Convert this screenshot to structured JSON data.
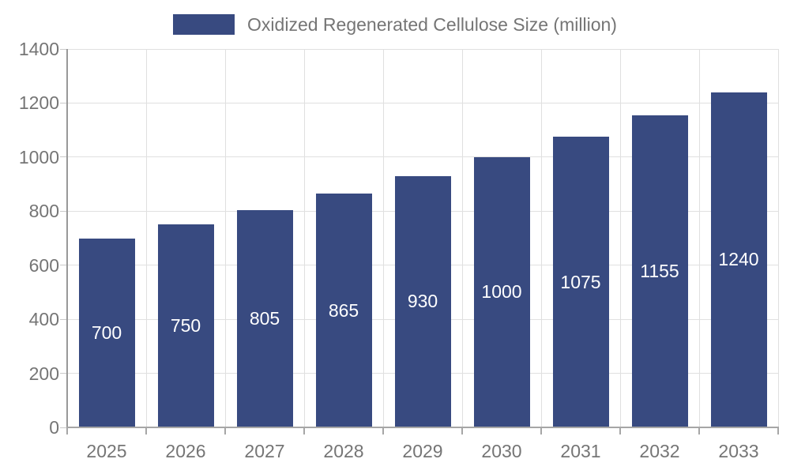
{
  "legend": {
    "label": "Oxidized Regenerated Cellulose Size (million)"
  },
  "chart_data": {
    "type": "bar",
    "title": "Oxidized Regenerated Cellulose Size (million)",
    "categories": [
      "2025",
      "2026",
      "2027",
      "2028",
      "2029",
      "2030",
      "2031",
      "2032",
      "2033"
    ],
    "series": [
      {
        "name": "Oxidized Regenerated Cellulose Size (million)",
        "values": [
          700,
          750,
          805,
          865,
          930,
          1000,
          1075,
          1155,
          1240
        ]
      }
    ],
    "xlabel": "",
    "ylabel": "",
    "ylim": [
      0,
      1400
    ],
    "yticks": [
      0,
      200,
      400,
      600,
      800,
      1000,
      1200,
      1400
    ],
    "grid": true,
    "legend_position": "top",
    "bar_color": "#384A80",
    "bar_label_color": "#FFFFFF",
    "axis_text_color": "#757575",
    "grid_color": "#E0E0E0",
    "axis_line_color": "#A6A6A6"
  }
}
